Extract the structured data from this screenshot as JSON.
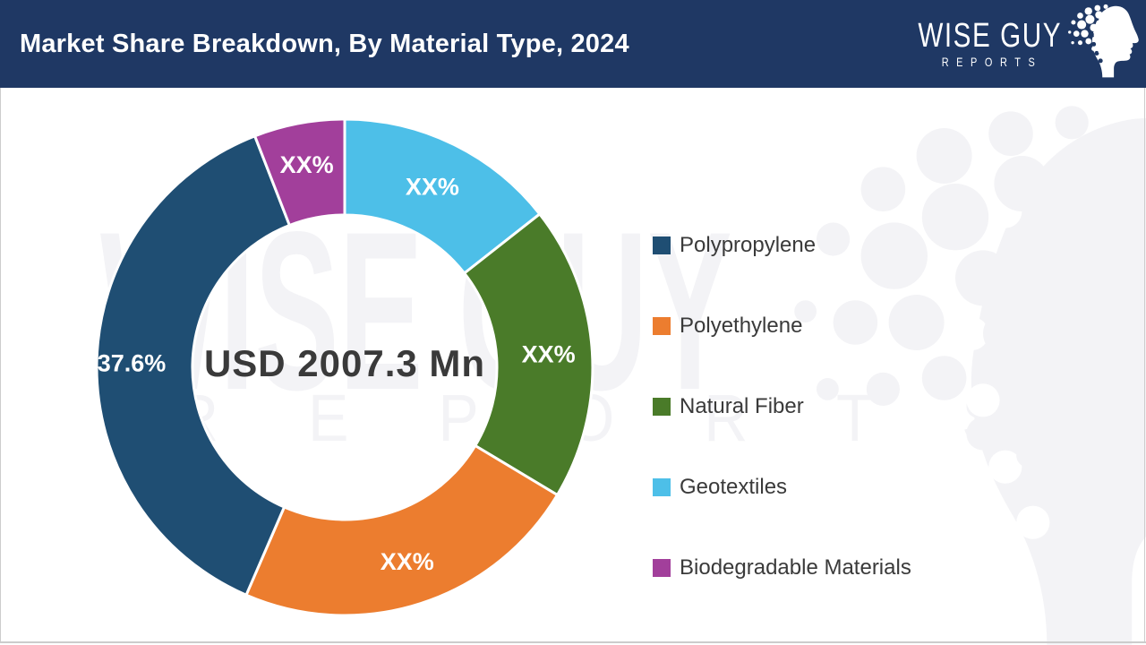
{
  "header": {
    "logo": {
      "line1": "WISE GUY",
      "line2": "REPORTS"
    }
  },
  "watermark": {
    "line1": "WISE GUY",
    "line2": "R E P O R T S"
  },
  "chart_data": {
    "type": "donut",
    "title": "Market Share Breakdown, By Material Type, 2024",
    "center_label": "USD 2007.3 Mn",
    "units": "percent of market share",
    "start_angle_deg": 0,
    "direction": "clockwise",
    "segments": [
      {
        "name": "Geotextiles",
        "value_pct": 14.4,
        "label": "XX%",
        "color": "#4DBFE8"
      },
      {
        "name": "Natural Fiber",
        "value_pct": 19.2,
        "label": "XX%",
        "color": "#4A7B29"
      },
      {
        "name": "Polyethylene",
        "value_pct": 22.9,
        "label": "XX%",
        "color": "#EC7D2F"
      },
      {
        "name": "Polypropylene",
        "value_pct": 37.6,
        "label": "37.6%",
        "color": "#1F4E73"
      },
      {
        "name": "Biodegradable Materials",
        "value_pct": 5.9,
        "label": "XX%",
        "color": "#A23F9B"
      }
    ],
    "legend_order": [
      3,
      2,
      1,
      0,
      4
    ],
    "legend_position": "right"
  },
  "theme": {
    "header_bg": "#1F3864",
    "text_dark": "#3A3A3A",
    "watermark": "#F3F3F6",
    "border_line": "#CCCCCC",
    "label_on_segment": "#FFFFFF"
  }
}
